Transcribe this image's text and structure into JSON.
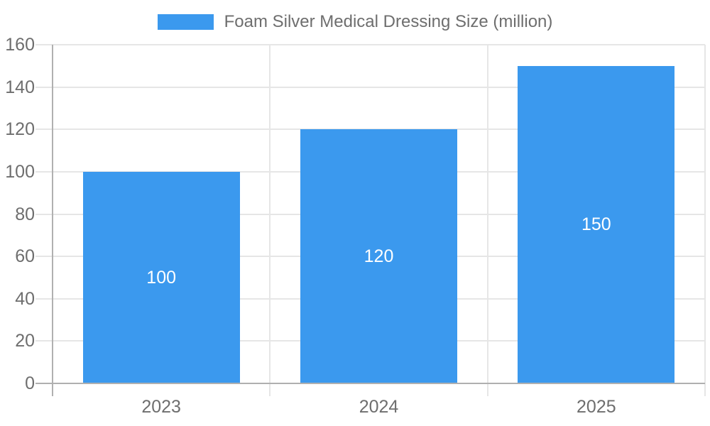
{
  "legend": {
    "label": "Foam Silver Medical Dressing Size (million)"
  },
  "chart_data": {
    "type": "bar",
    "title": "Foam Silver Medical Dressing Size (million)",
    "categories": [
      "2023",
      "2024",
      "2025"
    ],
    "values": [
      100,
      120,
      150
    ],
    "data_labels": [
      "100",
      "120",
      "150"
    ],
    "series": [
      {
        "name": "Foam Silver Medical Dressing Size (million)",
        "values": [
          100,
          120,
          150
        ]
      }
    ],
    "xlabel": "",
    "ylabel": "",
    "ylim": [
      0,
      160
    ],
    "yticks": [
      0,
      20,
      40,
      60,
      80,
      100,
      120,
      140,
      160
    ],
    "grid": true,
    "legend_position": "top"
  },
  "colors": {
    "bar": "#3B99EE",
    "grid": "#e6e6e6",
    "axis_line": "#b0b0b0",
    "tick_text": "#6e6e6e",
    "legend_text": "#6e6e6e",
    "data_label": "#ffffff",
    "background": "#ffffff"
  }
}
